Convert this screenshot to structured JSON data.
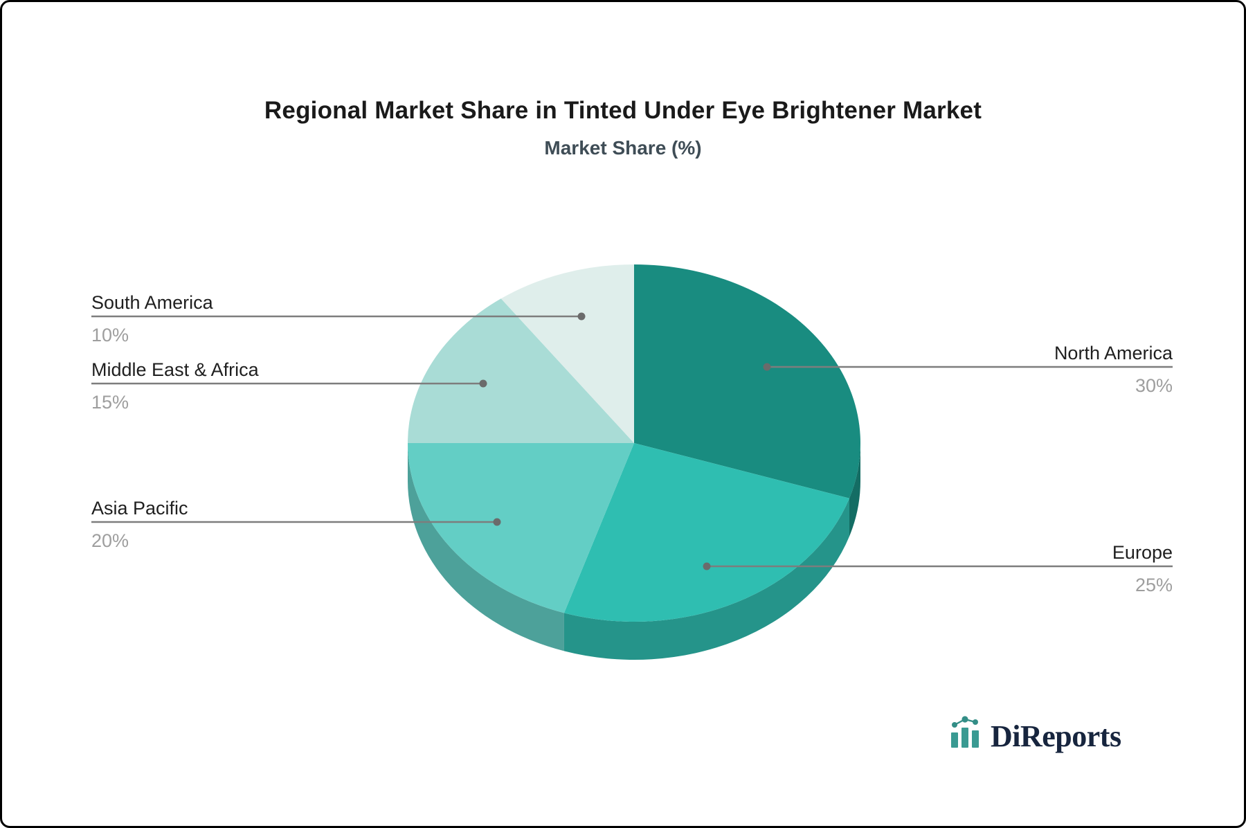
{
  "chart_data": {
    "type": "pie",
    "title": "Regional Market Share in Tinted Under Eye Brightener Market",
    "subtitle": "Market Share (%)",
    "unit": "%",
    "effect": "3d",
    "slices": [
      {
        "label": "North America",
        "value": 30,
        "pct_label": "30%",
        "color": "#198c80",
        "label_side": "right"
      },
      {
        "label": "Europe",
        "value": 25,
        "pct_label": "25%",
        "color": "#2fbeb1",
        "label_side": "right"
      },
      {
        "label": "Asia Pacific",
        "value": 20,
        "pct_label": "20%",
        "color": "#63cec5",
        "label_side": "left"
      },
      {
        "label": "Middle East & Africa",
        "value": 15,
        "pct_label": "15%",
        "color": "#a9dcd6",
        "label_side": "left"
      },
      {
        "label": "South America",
        "value": 10,
        "pct_label": "10%",
        "color": "#dfeeeb",
        "label_side": "left"
      }
    ],
    "style": {
      "label_color": "#1f1f1f",
      "pct_color": "#9e9e9e",
      "leader_line_color": "#7d7d7d",
      "leader_dot_color": "#6b6b6b"
    },
    "legend_position": "callout-labels"
  },
  "logo": {
    "text": "DiReports",
    "icon": "bar-chart-logo-icon",
    "text_color": "#17253e",
    "accent_color": "#3a9a92"
  }
}
